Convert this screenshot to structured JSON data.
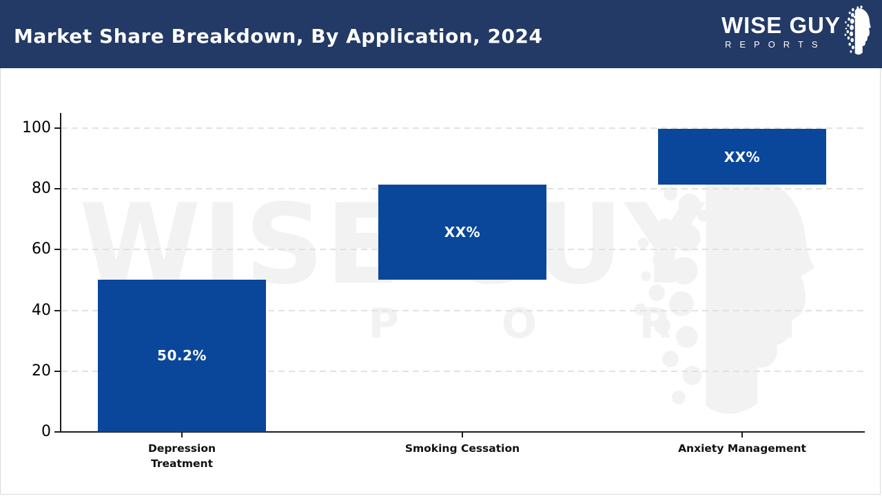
{
  "header": {
    "title": "Market Share Breakdown, By Application, 2024",
    "logo": {
      "wordmark": "WISE GUY",
      "subtext": "REPORTS"
    }
  },
  "watermark": {
    "line1": "WISE GUY",
    "line2": "R E P O R T S"
  },
  "chart_data": {
    "type": "bar",
    "variant": "stacked-breakdown-waterfall",
    "title": "Market Share Breakdown, By Application, 2024",
    "categories": [
      "Depression\nTreatment",
      "Smoking Cessation",
      "Anxiety Management"
    ],
    "segments": [
      {
        "category": "Depression Treatment",
        "label": "50.2%",
        "start": 0,
        "end": 50.2,
        "masked": false
      },
      {
        "category": "Smoking Cessation",
        "label": "XX%",
        "start": 50.2,
        "end": 81.3,
        "masked": true
      },
      {
        "category": "Anxiety Management",
        "label": "XX%",
        "start": 81.3,
        "end": 99.8,
        "masked": true
      }
    ],
    "yticks": [
      0,
      20,
      40,
      60,
      80,
      100
    ],
    "ylim": [
      0,
      105
    ],
    "xlabel": "",
    "ylabel": "",
    "grid": "horizontal-dashed",
    "legend": "none",
    "bar_color": "#0a479b",
    "bar_label_color": "#ffffff"
  },
  "colors": {
    "header_bg": "#233a66",
    "content_bg": "#ffffff",
    "watermark": "#f2f2f2",
    "axis": "#1a1a1a",
    "gridline": "#e1e1e1",
    "border": "#d9d9d9"
  }
}
